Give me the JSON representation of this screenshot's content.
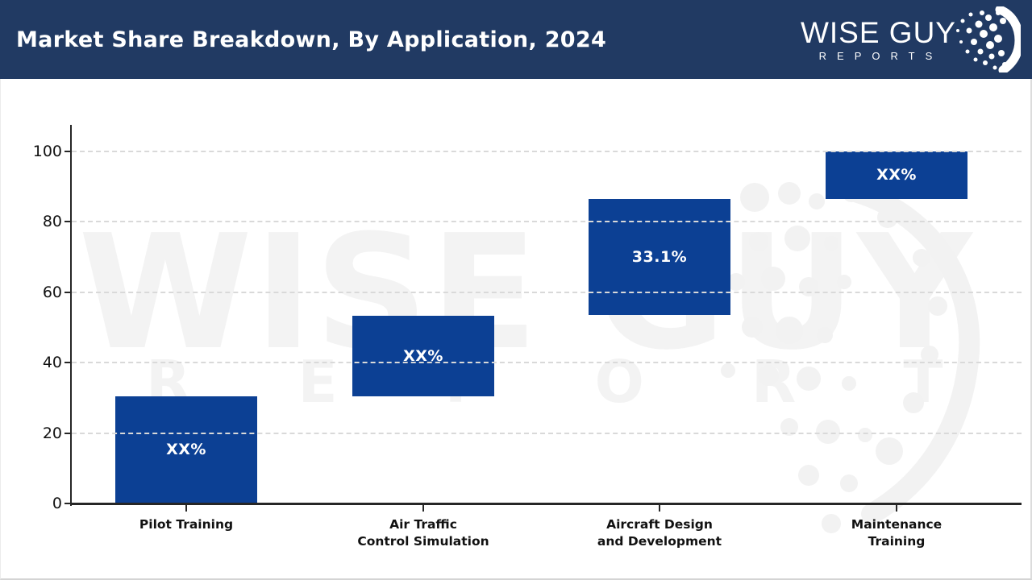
{
  "header": {
    "title": "Market Share Breakdown, By Application, 2024",
    "logo": {
      "line1": "WISE GUY",
      "line2": "REPORTS"
    }
  },
  "watermark": {
    "line1": "WISE GUY",
    "line2": "R E P O R T S"
  },
  "chart_data": {
    "type": "bar",
    "subtype": "waterfall",
    "title": "Market Share Breakdown, By Application, 2024",
    "categories": [
      "Pilot Training",
      "Air Traffic Control Simulation",
      "Aircraft Design and Development",
      "Maintenance Training"
    ],
    "category_label_lines": [
      [
        "Pilot Training"
      ],
      [
        "Air Traffic",
        "Control Simulation"
      ],
      [
        "Aircraft Design",
        "and Development"
      ],
      [
        "Maintenance",
        "Training"
      ]
    ],
    "bars": [
      {
        "category": "Pilot Training",
        "start": 0,
        "end": 30.5,
        "value": 30.5,
        "label": "XX%"
      },
      {
        "category": "Air Traffic Control Simulation",
        "start": 30.5,
        "end": 53.3,
        "value": 22.8,
        "label": "XX%"
      },
      {
        "category": "Aircraft Design and Development",
        "start": 53.4,
        "end": 86.5,
        "value": 33.1,
        "label": "33.1%"
      },
      {
        "category": "Maintenance Training",
        "start": 86.5,
        "end": 100,
        "value": 13.5,
        "label": "XX%"
      }
    ],
    "yticks": [
      0,
      20,
      40,
      60,
      80,
      100
    ],
    "ytick_labels": [
      "0",
      "20",
      "40",
      "60",
      "80",
      "100"
    ],
    "ylim": [
      0,
      105
    ],
    "xlabel": "",
    "ylabel": "",
    "grid": "horizontal-dashed-over-bars",
    "legend": "none",
    "bar_color": "#0c4094",
    "bar_label_color": "#ffffff"
  },
  "colors": {
    "header_bg": "#213a63",
    "bar": "#0c4094",
    "axis": "#262626",
    "grid": "#d9d9d9",
    "watermark": "#f3f3f3",
    "title_text": "#ffffff"
  }
}
